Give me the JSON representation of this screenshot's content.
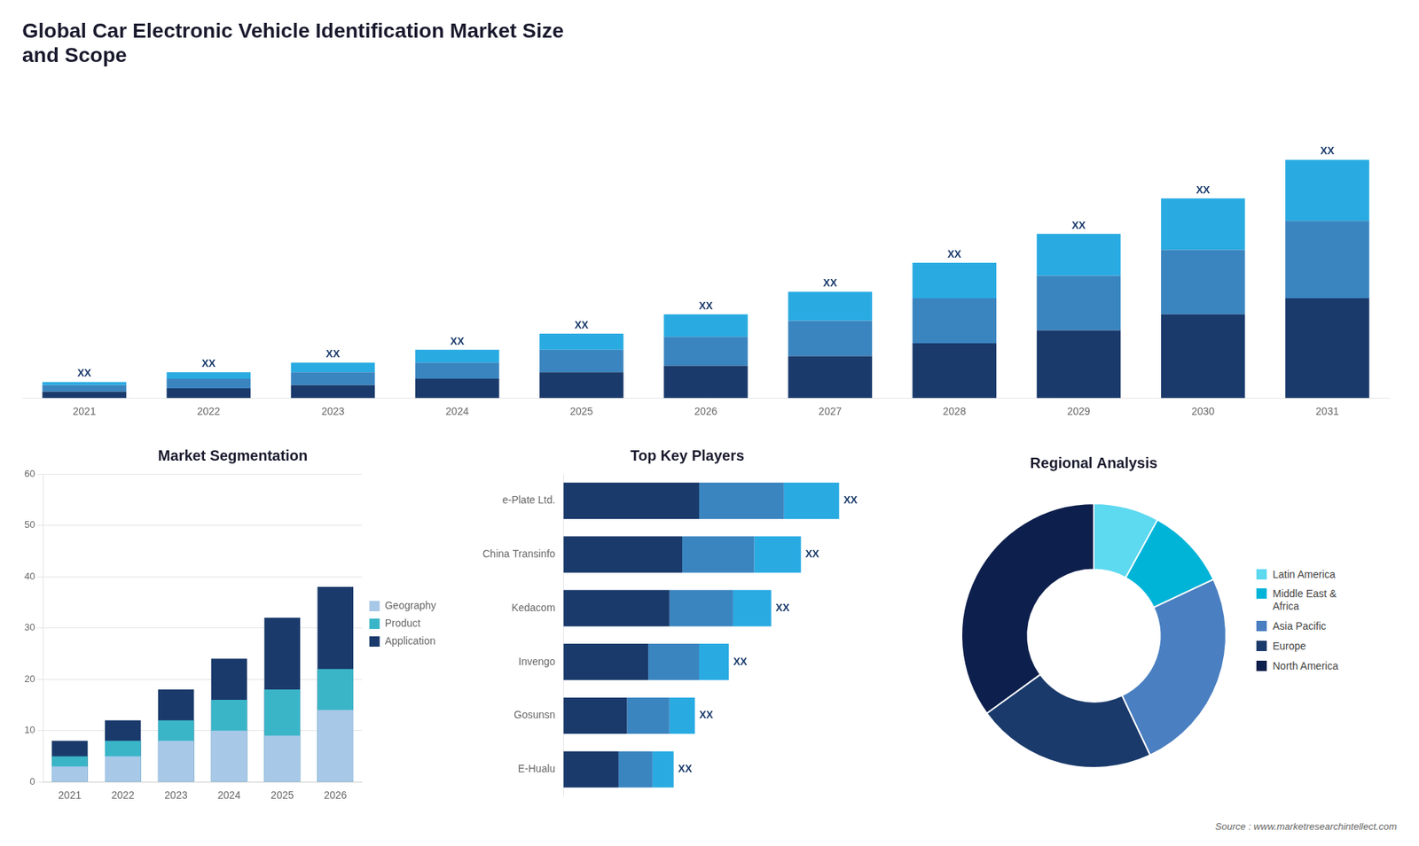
{
  "chart_data": [
    {
      "type": "bar",
      "title": "Global Car Electronic Vehicle Identification Market Size\nand Scope",
      "categories": [
        "2021",
        "2022",
        "2023",
        "2024",
        "2025",
        "2026",
        "2027",
        "2028",
        "2029",
        "2030",
        "2031"
      ],
      "series": [
        {
          "color": "#1a3a6b",
          "values": [
            2,
            3,
            4,
            6,
            8,
            10,
            13,
            17,
            21,
            26,
            31
          ]
        },
        {
          "color": "#3a85c0",
          "values": [
            2,
            3,
            4,
            5,
            7,
            9,
            11,
            14,
            17,
            20,
            24
          ]
        },
        {
          "color": "#29abe2",
          "values": [
            1,
            2,
            3,
            4,
            5,
            7,
            9,
            11,
            13,
            16,
            19
          ]
        }
      ],
      "stacked": true,
      "ylim": [
        0,
        97.68
      ],
      "tick_labels": "x",
      "grid": false,
      "annotations": [
        "XX",
        "XX",
        "XX",
        "XX",
        "XX",
        "XX",
        "XX",
        "XX",
        "XX",
        "XX",
        "XX"
      ]
    },
    {
      "type": "bar",
      "title": "Market Segmentation",
      "categories": [
        "2021",
        "2022",
        "2023",
        "2024",
        "2025",
        "2026"
      ],
      "series": [
        {
          "name": "Application",
          "color": "#1a3a6b",
          "values": [
            8,
            12,
            18,
            24,
            32,
            38
          ]
        },
        {
          "name": "Product",
          "color": "#3ab5c8",
          "values": [
            5,
            8,
            12,
            16,
            18,
            22
          ]
        },
        {
          "name": "Geography",
          "color": "#a8c8e8",
          "values": [
            3,
            5,
            8,
            10,
            9,
            14
          ]
        }
      ],
      "stacked": false,
      "ylim": [
        0,
        60
      ],
      "yticks": [
        0,
        10,
        20,
        30,
        40,
        50,
        60
      ],
      "grid": true,
      "legend": "right"
    },
    {
      "type": "bar",
      "orientation": "horizontal",
      "title": "Top Key Players",
      "categories": [
        "e-Plate Ltd.",
        "China Transinfo",
        "Kedacom",
        "Invengo",
        "Gosunsn",
        "E-Hualu"
      ],
      "series": [
        {
          "color": "#1a3a6b",
          "values": [
            32,
            28,
            25,
            20,
            15,
            13
          ]
        },
        {
          "color": "#3a85c0",
          "values": [
            20,
            17,
            15,
            12,
            10,
            8
          ]
        },
        {
          "color": "#29abe2",
          "values": [
            13,
            11,
            9,
            7,
            6,
            5
          ]
        }
      ],
      "stacked": true,
      "xlim": [
        0,
        78
      ],
      "tick_labels": "y",
      "grid": false,
      "annotations": [
        "XX",
        "XX",
        "XX",
        "XX",
        "XX",
        "XX"
      ]
    },
    {
      "type": "doughnut",
      "title": "Regional Analysis",
      "categories": [
        "Latin America",
        "Middle East &\nAfrica",
        "Asia Pacific",
        "Europe",
        "North America"
      ],
      "values": [
        8,
        10,
        25,
        22,
        35
      ],
      "colors": [
        "#5dd9f0",
        "#00b4d8",
        "#4a7fc1",
        "#1a3a6b",
        "#0d1f4c"
      ],
      "legend": "right",
      "annotations": [
        "Source : www.marketresearchintellect.com"
      ]
    }
  ]
}
